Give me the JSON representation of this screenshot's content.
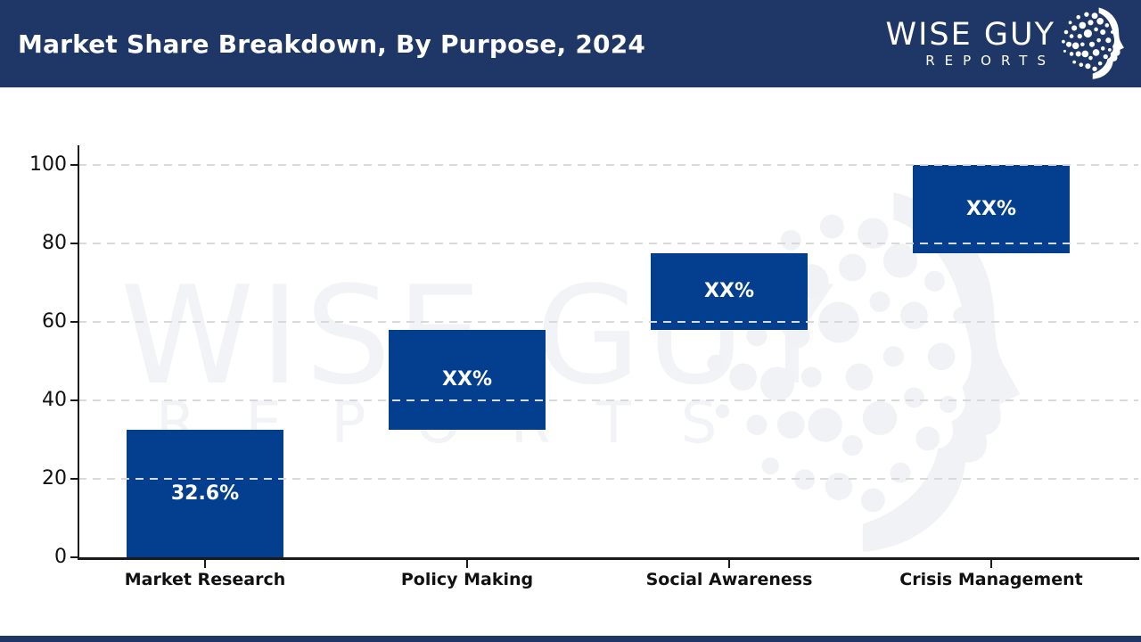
{
  "header": {
    "title": "Market Share Breakdown, By Purpose, 2024",
    "bg_color": "#1f3766"
  },
  "brand": {
    "name": "WISE GUY",
    "subtitle": "REPORTS"
  },
  "watermark": {
    "line1": "WISE GUY",
    "line2": "REPORTS"
  },
  "footer": {
    "bg_color": "#1f3766"
  },
  "chart_data": {
    "type": "bar",
    "variant": "waterfall",
    "title": "Market Share Breakdown, By Purpose, 2024",
    "categories": [
      "Market Research",
      "Policy Making",
      "Social Awareness",
      "Crisis Management"
    ],
    "segments": [
      {
        "category": "Market Research",
        "start": 0,
        "end": 32.6,
        "label": "32.6%"
      },
      {
        "category": "Policy Making",
        "start": 32.6,
        "end": 58,
        "label": "XX%"
      },
      {
        "category": "Social Awareness",
        "start": 58,
        "end": 77.5,
        "label": "XX%"
      },
      {
        "category": "Crisis Management",
        "start": 77.5,
        "end": 100,
        "label": "XX%"
      }
    ],
    "xlabel": "",
    "ylabel": "",
    "ylim": [
      0,
      100
    ],
    "yticks": [
      0,
      20,
      40,
      60,
      80,
      100
    ],
    "grid": {
      "horizontal": true,
      "style": "dashed",
      "color": "#d9d9d9"
    },
    "bar_color": "#043f8f",
    "bar_label_color": "#ffffff",
    "axis_color": "#1a1a1a",
    "legend": "none"
  }
}
